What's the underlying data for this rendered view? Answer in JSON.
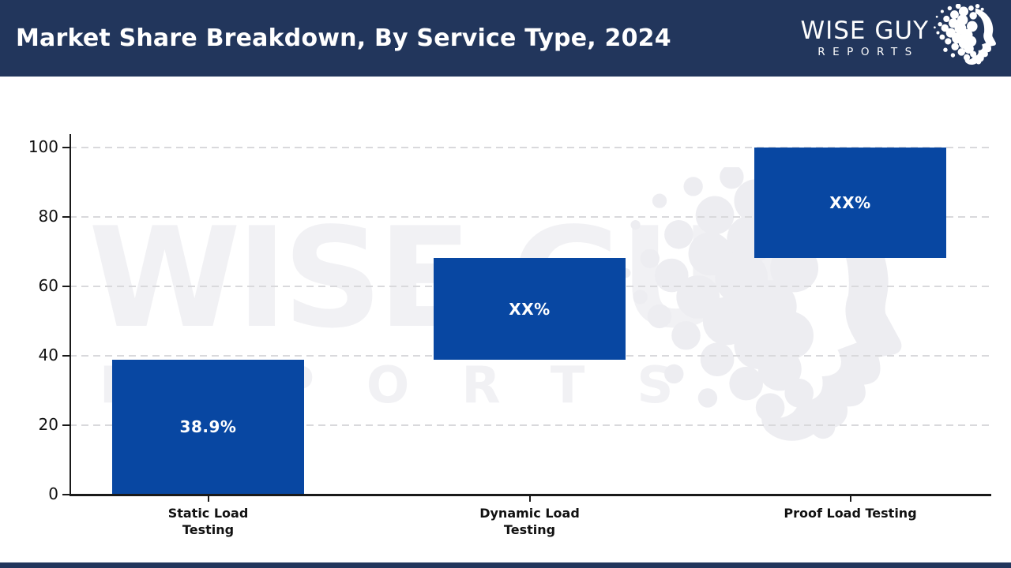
{
  "header": {
    "title": "Market Share Breakdown, By Service Type, 2024",
    "logo": {
      "line1": "WISE GUY",
      "line2": "REPORTS"
    }
  },
  "watermark": {
    "line1": "WISE GUY",
    "line2": "REPORTS"
  },
  "footer": {},
  "chart_data": {
    "type": "bar",
    "subtype": "waterfall",
    "title": "Market Share Breakdown, By Service Type, 2024",
    "xlabel": "",
    "ylabel": "",
    "categories": [
      "Static Load\nTesting",
      "Dynamic Load\nTesting",
      "Proof Load Testing"
    ],
    "segments": [
      {
        "category": "Static Load Testing",
        "start": 0,
        "end": 38.9,
        "label": "38.9%"
      },
      {
        "category": "Dynamic Load Testing",
        "start": 38.9,
        "end": 68.1,
        "label": "XX%"
      },
      {
        "category": "Proof Load Testing",
        "start": 68.1,
        "end": 100,
        "label": "XX%"
      }
    ],
    "y_ticks": [
      0,
      20,
      40,
      60,
      80,
      100
    ],
    "ylim": [
      0,
      100
    ],
    "grid": "horizontal-dashed",
    "legend": "none",
    "bar_color": "#0847a2",
    "label_color": "#ffffff",
    "header_color": "#22365c",
    "gridline_color": "#d9d9dc"
  }
}
